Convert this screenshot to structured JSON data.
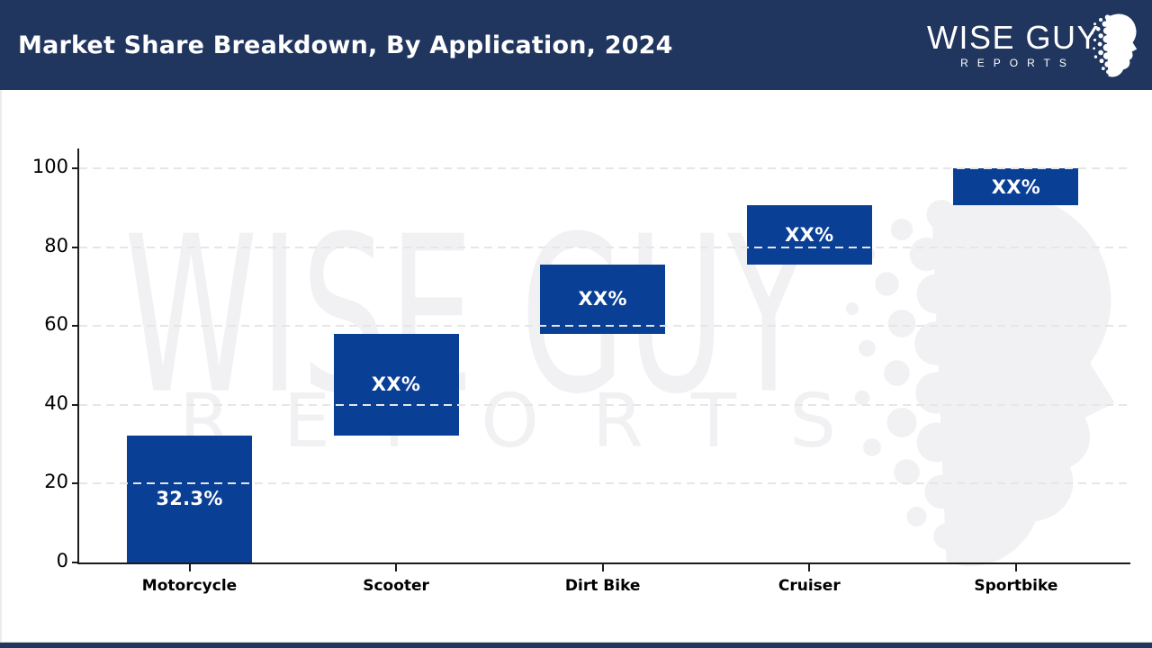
{
  "header": {
    "title": "Market Share Breakdown, By Application, 2024",
    "logo": {
      "line1": "WISE GUY",
      "line2": "REPORTS"
    }
  },
  "watermark": {
    "line1": "WISE GUY",
    "line2": "REPORTS"
  },
  "colors": {
    "header_bg": "#21365f",
    "bar": "#0a3f96",
    "bar_label": "#ffffff",
    "grid": "#e6e6e6",
    "axis": "#1b1b1b",
    "watermark": "#f1f1f3"
  },
  "chart_data": {
    "type": "bar",
    "subtype": "waterfall",
    "title": "Market Share Breakdown, By Application, 2024",
    "categories": [
      "Motorcycle",
      "Scooter",
      "Dirt Bike",
      "Cruiser",
      "Sportbike"
    ],
    "segments": [
      {
        "category": "Motorcycle",
        "start": 0,
        "end": 32.3,
        "label": "32.3%"
      },
      {
        "category": "Scooter",
        "start": 32.3,
        "end": 58.1,
        "label": "XX%"
      },
      {
        "category": "Dirt Bike",
        "start": 58.1,
        "end": 75.6,
        "label": "XX%"
      },
      {
        "category": "Cruiser",
        "start": 75.6,
        "end": 90.6,
        "label": "XX%"
      },
      {
        "category": "Sportbike",
        "start": 90.6,
        "end": 100,
        "label": "XX%"
      }
    ],
    "y_ticks": [
      0,
      20,
      40,
      60,
      80,
      100
    ],
    "ylim": [
      0,
      105
    ],
    "xlabel": "",
    "ylabel": "",
    "grid": "horizontal-dashed",
    "legend": "none"
  }
}
